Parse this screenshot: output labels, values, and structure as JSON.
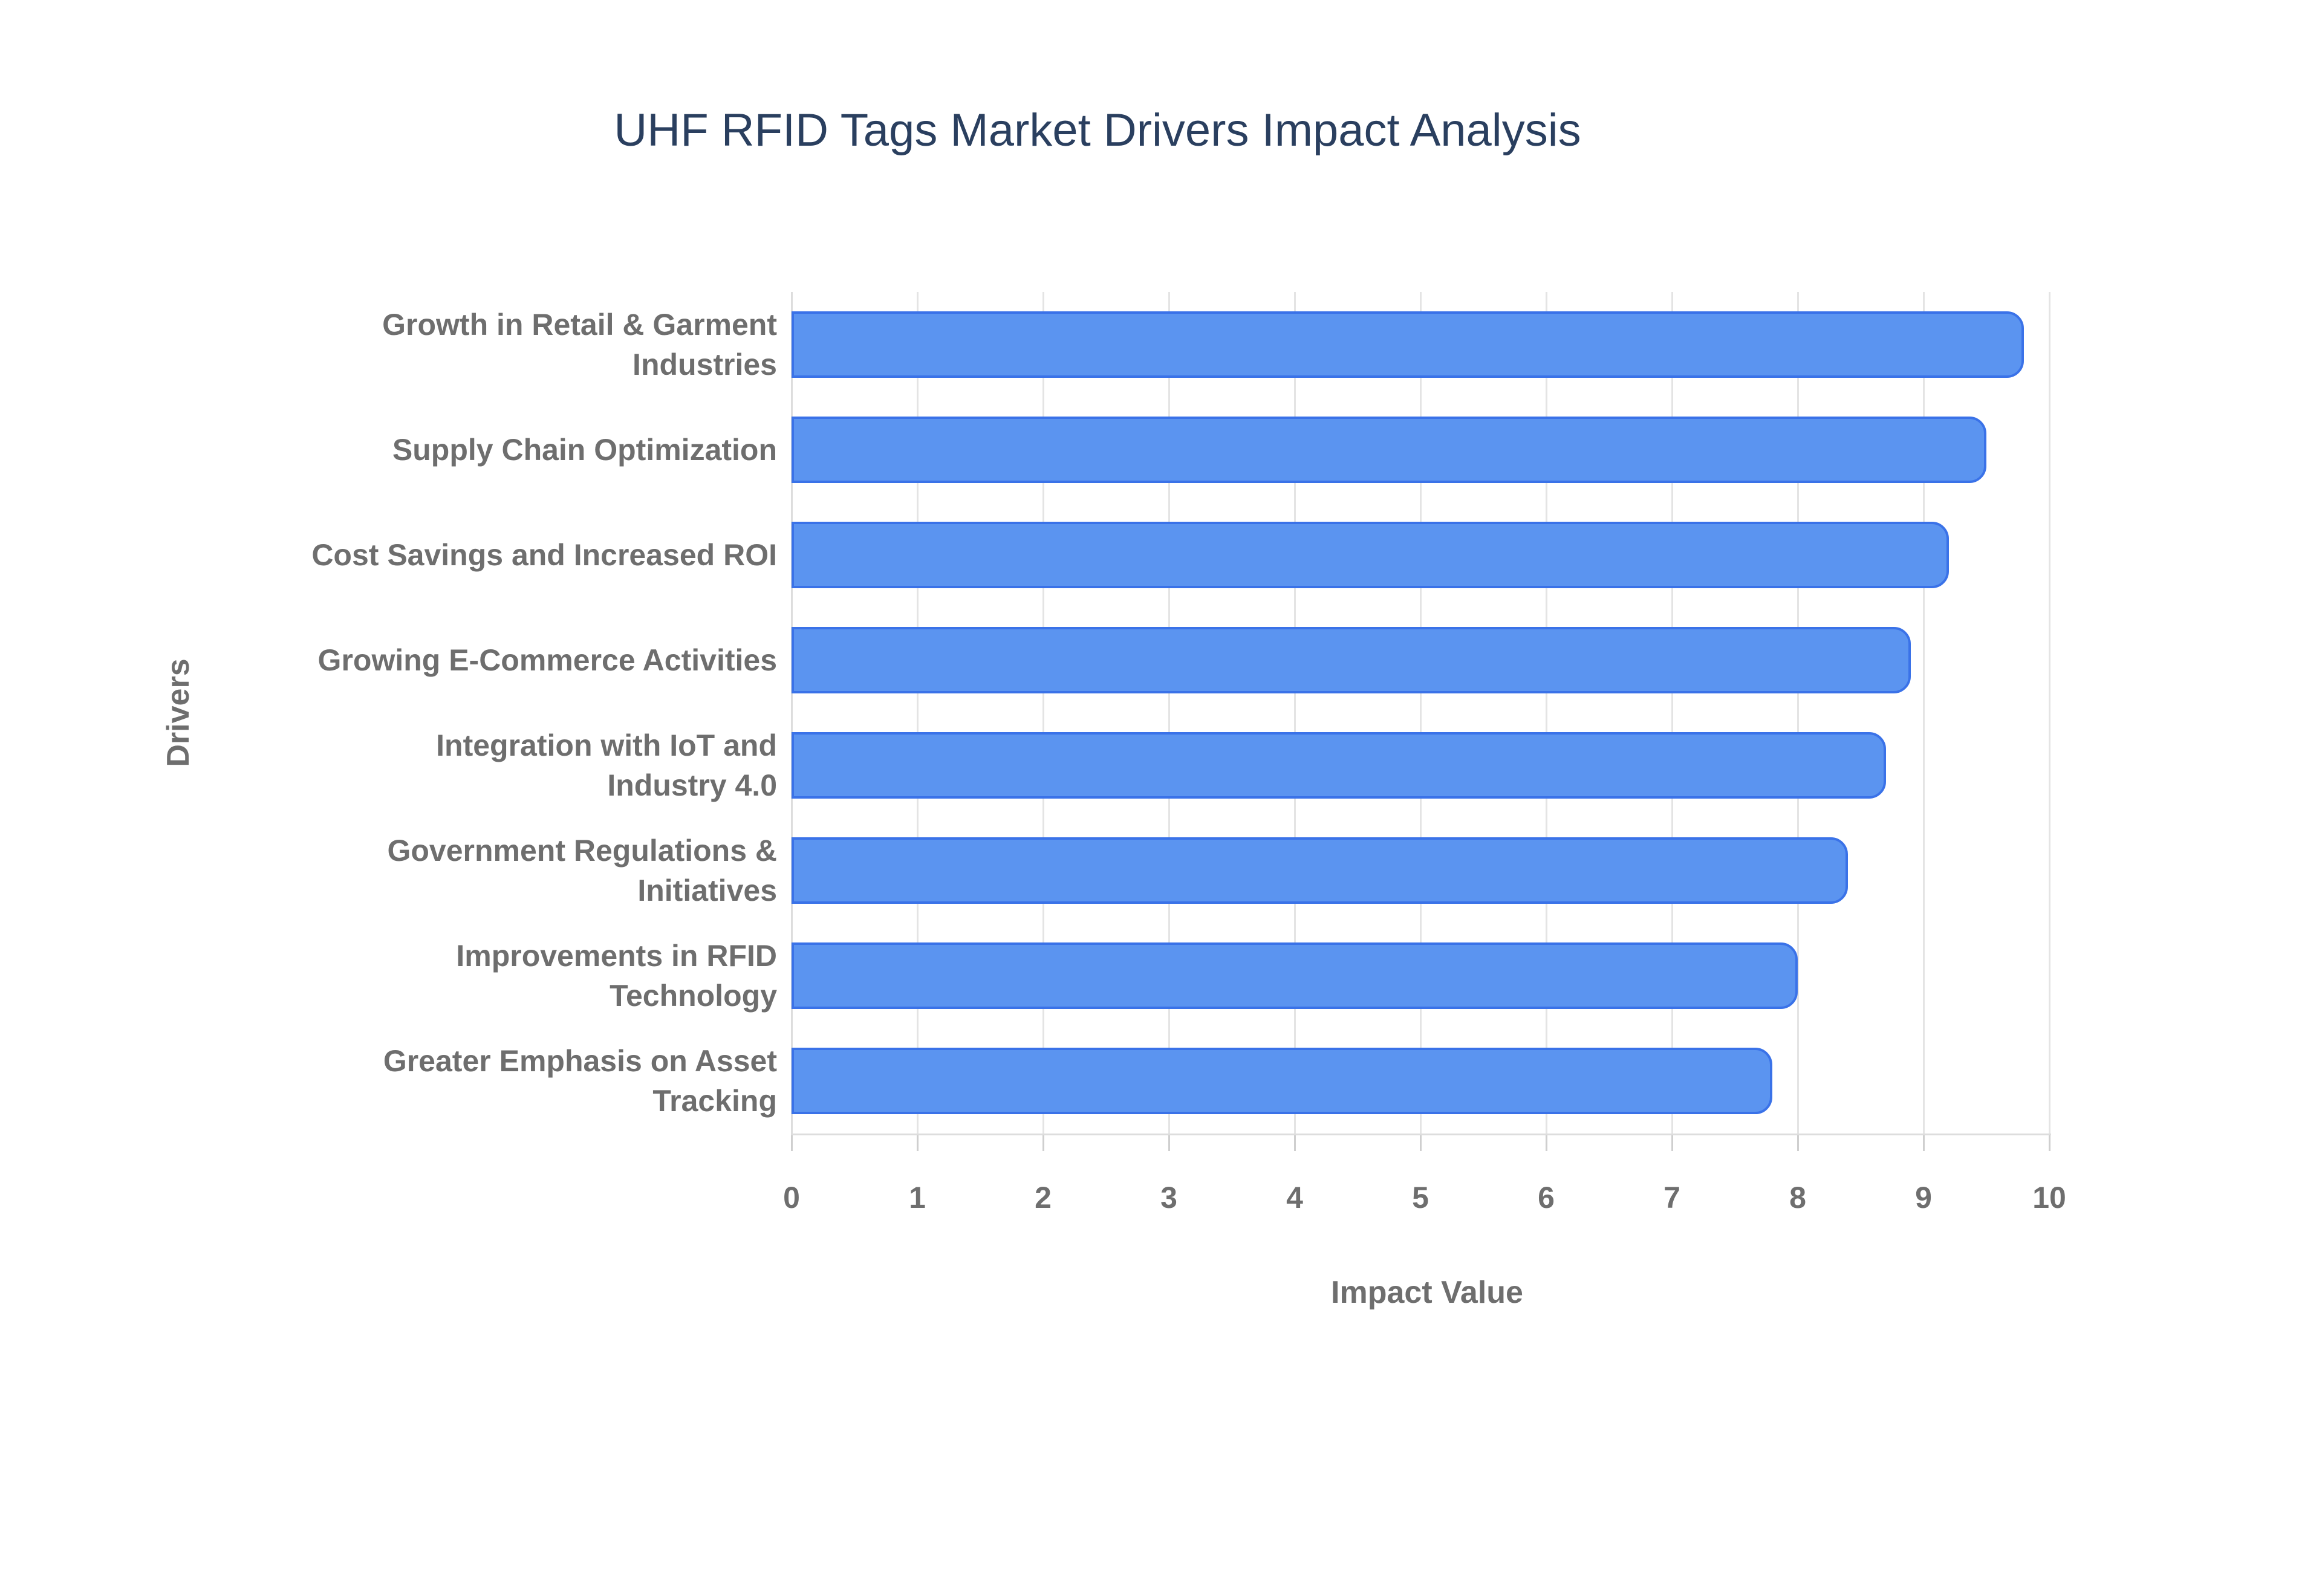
{
  "title": "UHF RFID Tags Market Drivers Impact Analysis",
  "chart_data": {
    "type": "bar",
    "orientation": "horizontal",
    "title": "UHF RFID Tags Market Drivers Impact Analysis",
    "categories": [
      "Growth in Retail & Garment\nIndustries",
      "Supply Chain Optimization",
      "Cost Savings and Increased ROI",
      "Growing E-Commerce Activities",
      "Integration with IoT and\nIndustry 4.0",
      "Government Regulations &\nInitiatives",
      "Improvements in RFID\nTechnology",
      "Greater Emphasis on Asset\nTracking"
    ],
    "values": [
      9.8,
      9.5,
      9.2,
      8.9,
      8.7,
      8.4,
      8,
      7.8
    ],
    "xlabel": "Impact Value",
    "ylabel": "Drivers",
    "xlim": [
      0,
      10
    ],
    "xticks": [
      0,
      1,
      2,
      3,
      4,
      5,
      6,
      7,
      8,
      9,
      10
    ],
    "grid": "vertical",
    "legend": "none",
    "colors": {
      "bar_fill": "#5B94F0",
      "bar_border": "#3A72E8",
      "title_text": "#2A3F5F",
      "axis_text": "#6E6E6E",
      "gridline": "#E4E4E4"
    }
  }
}
